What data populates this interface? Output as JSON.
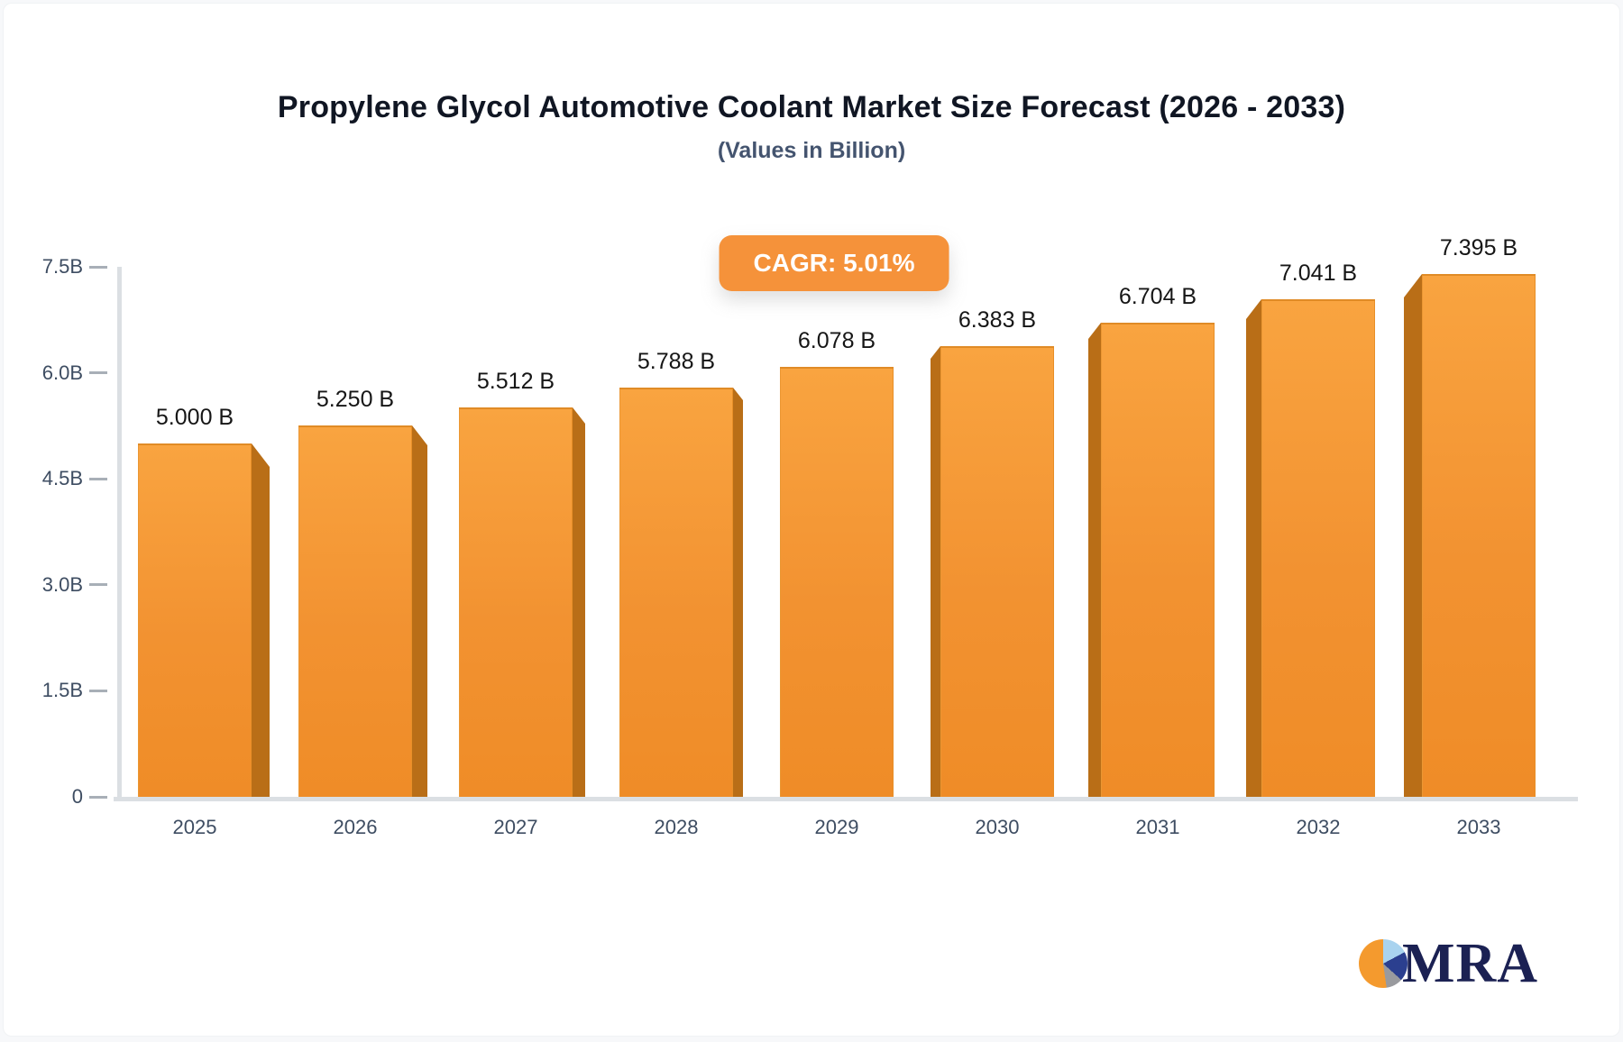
{
  "header": {
    "title": "Propylene Glycol Automotive Coolant Market Size Forecast (2026 - 2033)",
    "subtitle": "(Values in Billion)"
  },
  "badge": {
    "label": "CAGR: 5.01%",
    "color": "#F5923A"
  },
  "logo": {
    "text": "MRA",
    "pie_colors": [
      "#F49A2E",
      "#A9D3EF",
      "#2B3F8F",
      "#999A9E"
    ],
    "text_color": "#1B2153"
  },
  "chart_data": {
    "type": "bar",
    "title": "Propylene Glycol Automotive Coolant Market Size Forecast (2026 - 2033)",
    "subtitle": "(Values in Billion)",
    "categories": [
      "2025",
      "2026",
      "2027",
      "2028",
      "2029",
      "2030",
      "2031",
      "2032",
      "2033"
    ],
    "values": [
      5.0,
      5.25,
      5.512,
      5.788,
      6.078,
      6.383,
      6.704,
      7.041,
      7.395
    ],
    "value_labels": [
      "5.000 B",
      "5.250 B",
      "5.512 B",
      "5.788 B",
      "6.078 B",
      "6.383 B",
      "6.704 B",
      "7.041 B",
      "7.395 B"
    ],
    "xlabel": "",
    "ylabel": "",
    "ylim": [
      0,
      7.5
    ],
    "y_ticks": {
      "labels": [
        "7.5B",
        "6.0B",
        "4.5B",
        "3.0B",
        "1.5B",
        "0"
      ],
      "values": [
        7.5,
        6.0,
        4.5,
        3.0,
        1.5,
        0
      ]
    },
    "annotation": "CAGR: 5.01%",
    "grid": false,
    "legend": false,
    "bar_color": "#F89C38",
    "bar_side_color": "#B96E17",
    "style": "3d-perspective-bars"
  }
}
